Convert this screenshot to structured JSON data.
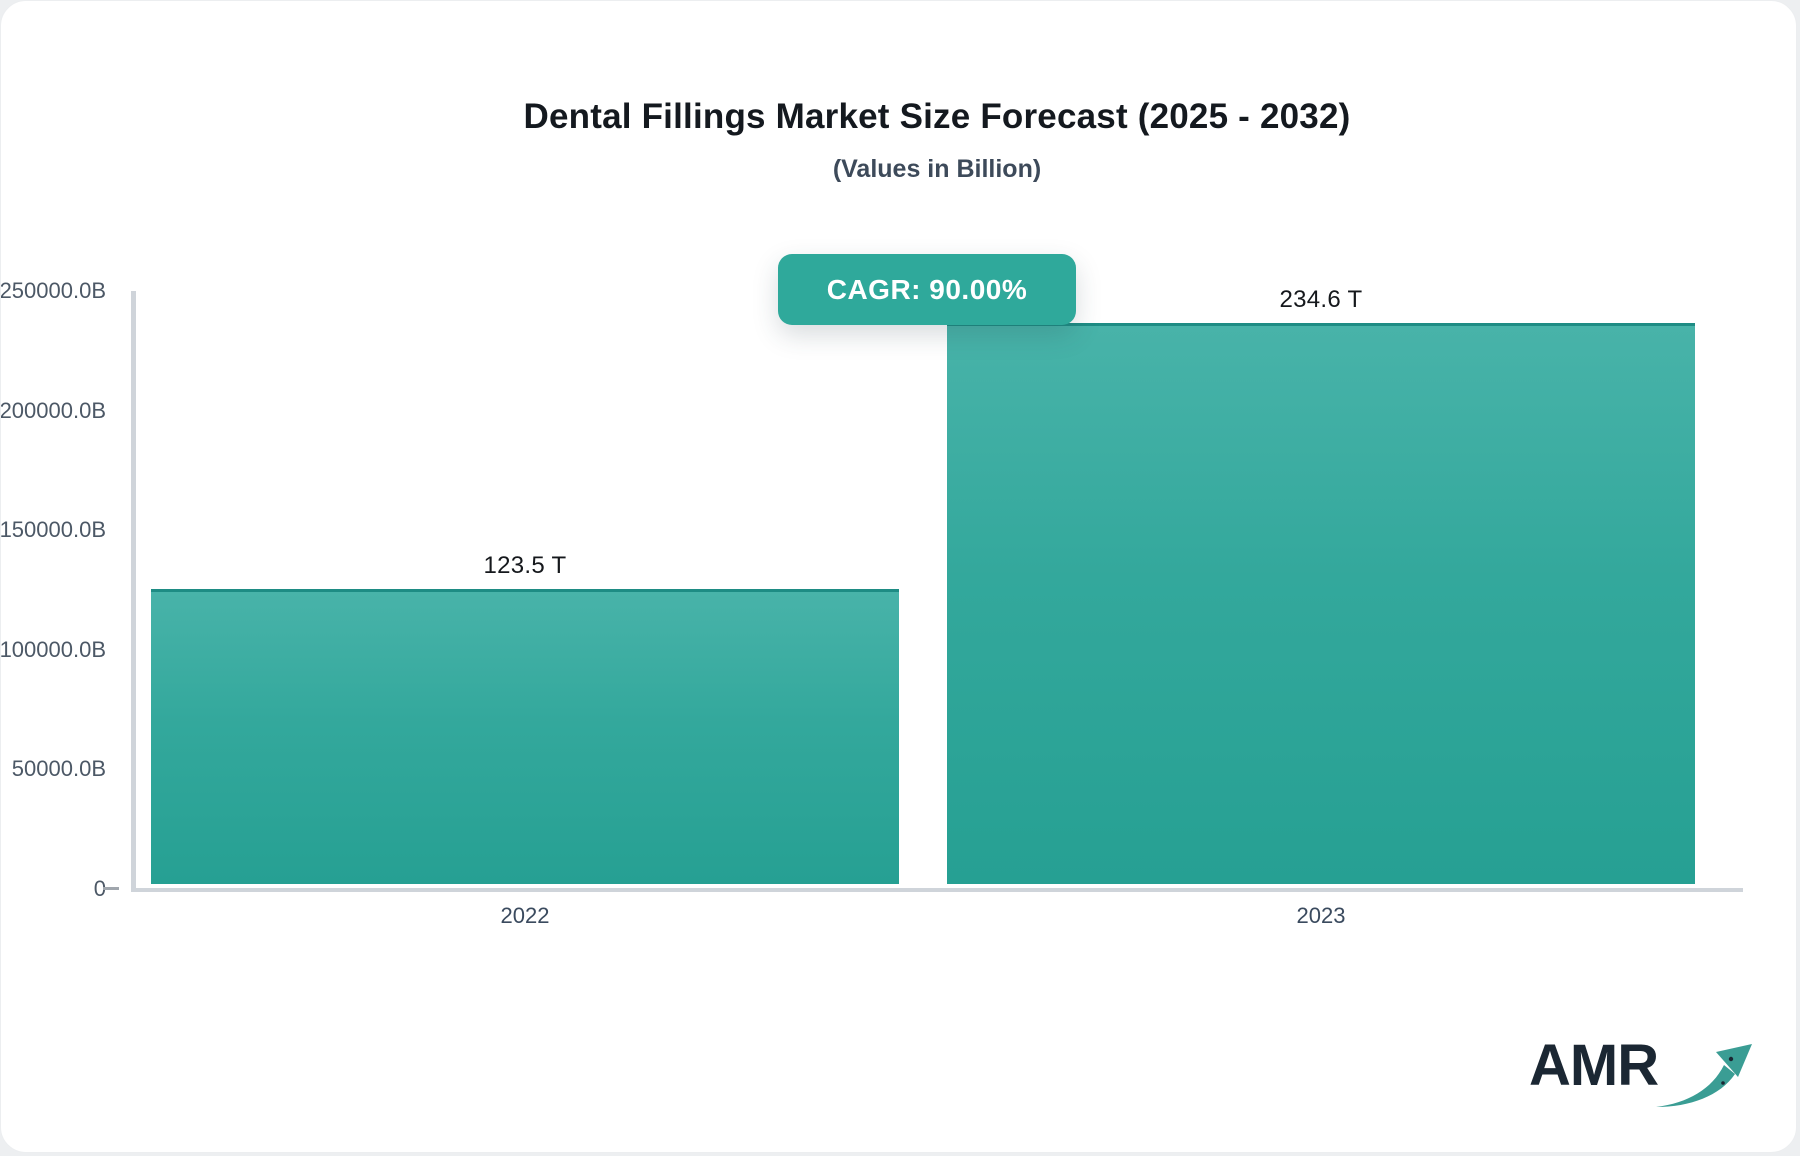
{
  "page": {
    "background": "#edeff1",
    "card_background": "#ffffff"
  },
  "header": {
    "title": "Dental Fillings Market Size Forecast (2025 - 2032)",
    "subtitle": "(Values in Billion)"
  },
  "badge": {
    "label": "CAGR: 90.00%",
    "background": "#2fa99b",
    "text_color": "#ffffff"
  },
  "chart_data": {
    "type": "bar",
    "title": "Dental Fillings Market Size Forecast (2025 - 2032)",
    "subtitle": "(Values in Billion)",
    "unit": "Billion",
    "categories": [
      "2022",
      "2023"
    ],
    "values": [
      123500,
      234600
    ],
    "points": [
      {
        "category": "2022",
        "value": 123500,
        "display": "123.5 T"
      },
      {
        "category": "2023",
        "value": 234600,
        "display": "234.6 T"
      }
    ],
    "y_axis": {
      "min": 0,
      "max": 250000,
      "ticks": [
        {
          "label": "250000.0B",
          "value": 250000
        },
        {
          "label": "200000.0B",
          "value": 200000
        },
        {
          "label": "150000.0B",
          "value": 150000
        },
        {
          "label": "100000.0B",
          "value": 100000
        },
        {
          "label": "50000.0B",
          "value": 50000
        },
        {
          "label": "0",
          "value": 0
        }
      ]
    },
    "grid": "off",
    "legend": "none",
    "bar_color_top": "#48b3a9",
    "bar_color_bottom": "#26a093",
    "bar_border_color": "#1e8c84",
    "axis_color": "#cfd4da"
  },
  "logo": {
    "text": "AMR",
    "text_color": "#1b2733",
    "arrow_color": "#3a9d94"
  }
}
